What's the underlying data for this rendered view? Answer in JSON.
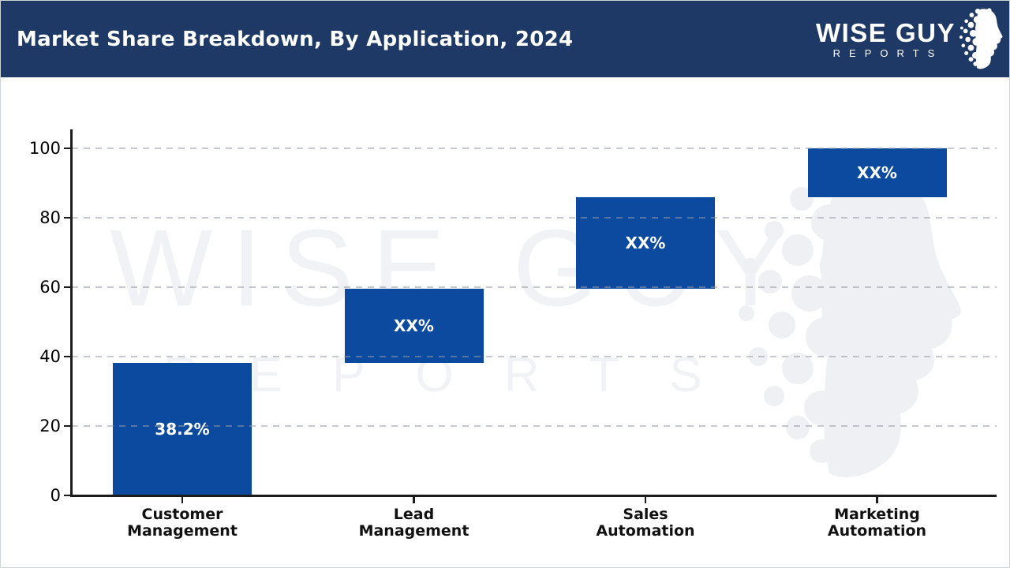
{
  "header": {
    "title": "Market Share Breakdown, By Application, 2024",
    "logo": {
      "line1": "WISE GUY",
      "line2": "REPORTS"
    }
  },
  "watermark": {
    "line1": "WISE GUY",
    "line2": "REPORTS"
  },
  "colors": {
    "header_bg": "#1f3966",
    "bar": "#0b4a9f",
    "grid": "#d2d5d9",
    "axis": "#1c1c1c",
    "watermark": "#f1f2f5"
  },
  "chart_data": {
    "type": "bar",
    "variant": "waterfall",
    "title": "Market Share Breakdown, By Application, 2024",
    "unit": "%",
    "categories": [
      "Customer Management",
      "Lead Management",
      "Sales Automation",
      "Marketing Automation"
    ],
    "bars": [
      {
        "category": "Customer Management",
        "start": 0,
        "end": 38.2,
        "label": "38.2%"
      },
      {
        "category": "Lead Management",
        "start": 38.2,
        "end": 59.5,
        "label": "XX%"
      },
      {
        "category": "Sales Automation",
        "start": 59.5,
        "end": 85.8,
        "label": "XX%"
      },
      {
        "category": "Marketing Automation",
        "start": 85.8,
        "end": 100,
        "label": "XX%"
      }
    ],
    "yticks": [
      0,
      20,
      40,
      60,
      80,
      100
    ],
    "ylim": [
      0,
      105.5
    ],
    "grid": "horizontal-dashed",
    "legend": "none"
  }
}
